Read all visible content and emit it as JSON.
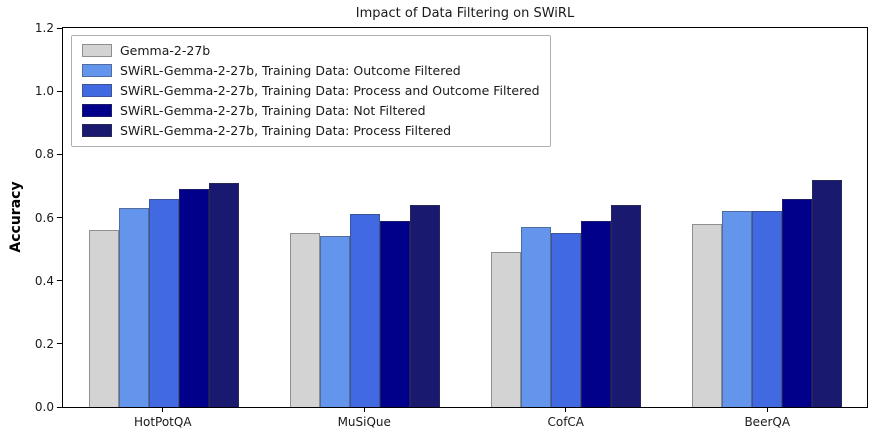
{
  "chart_data": {
    "type": "bar",
    "title": "Impact of Data Filtering on SWiRL",
    "xlabel": "",
    "ylabel": "Accuracy",
    "ylim": [
      0,
      1.2
    ],
    "yticks": [
      0.0,
      0.2,
      0.4,
      0.6,
      0.8,
      1.0,
      1.2
    ],
    "grid": false,
    "legend_position": "upper left",
    "categories": [
      "HotPotQA",
      "MuSiQue",
      "CofCA",
      "BeerQA"
    ],
    "series": [
      {
        "name": "Gemma-2-27b",
        "color": "#d3d3d3",
        "values": [
          0.56,
          0.55,
          0.49,
          0.58
        ]
      },
      {
        "name": "SWiRL-Gemma-2-27b, Training Data: Outcome Filtered",
        "color": "#6495ed",
        "values": [
          0.63,
          0.54,
          0.57,
          0.62
        ]
      },
      {
        "name": "SWiRL-Gemma-2-27b, Training Data: Process and Outcome Filtered",
        "color": "#4169e1",
        "values": [
          0.66,
          0.61,
          0.55,
          0.62
        ]
      },
      {
        "name": "SWiRL-Gemma-2-27b, Training Data: Not Filtered",
        "color": "#00008b",
        "values": [
          0.69,
          0.59,
          0.59,
          0.66
        ]
      },
      {
        "name": "SWiRL-Gemma-2-27b, Training Data: Process Filtered",
        "color": "#191970",
        "values": [
          0.71,
          0.64,
          0.64,
          0.72
        ]
      }
    ]
  }
}
